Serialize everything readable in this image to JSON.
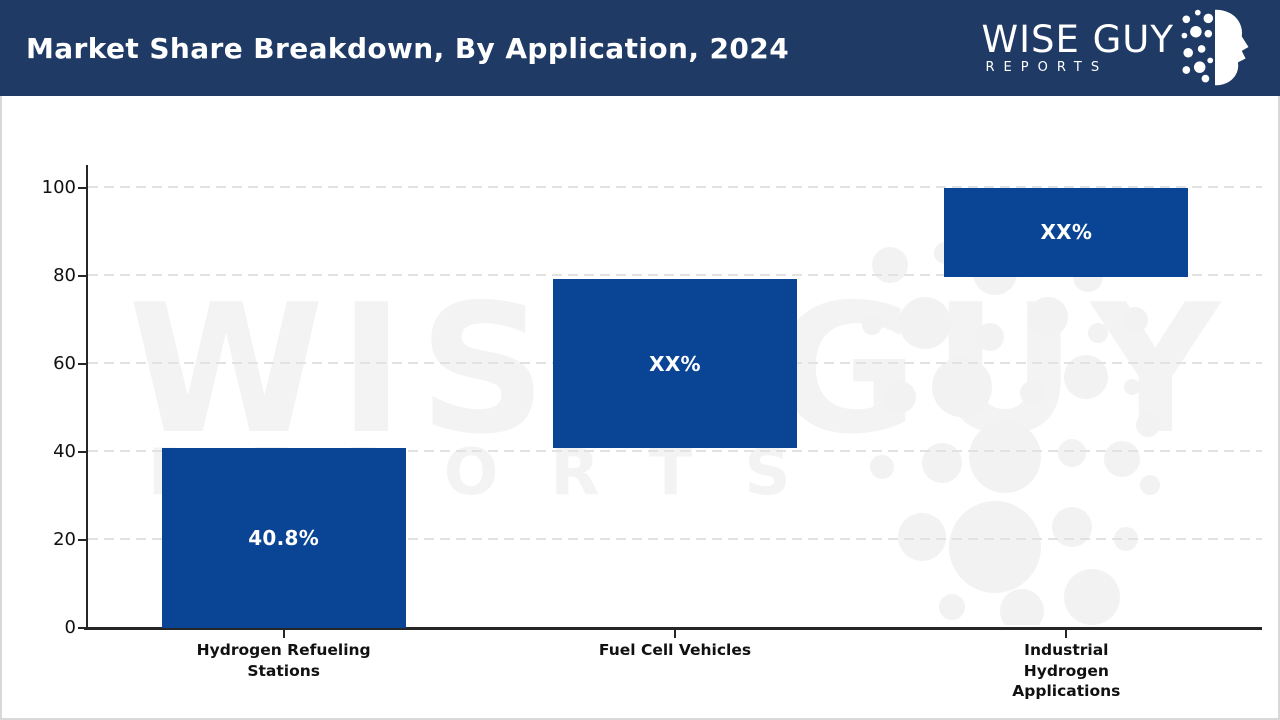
{
  "header": {
    "title": "Market Share Breakdown, By Application, 2024",
    "bg_color": "#1f3a64",
    "logo": {
      "line1": "WISE GUY",
      "line2": "REPORTS"
    }
  },
  "watermark": {
    "line1": "WISE GUY",
    "line2": "REPORTS"
  },
  "chart_data": {
    "type": "bar",
    "subtype": "waterfall",
    "title": "Market Share Breakdown, By Application, 2024",
    "xlabel": "",
    "ylabel": "",
    "categories": [
      "Hydrogen Refueling Stations",
      "Fuel Cell Vehicles",
      "Industrial Hydrogen Applications"
    ],
    "bars": [
      {
        "category": "Hydrogen Refueling Stations",
        "lines": [
          "Hydrogen Refueling",
          "Stations"
        ],
        "label": "40.8%",
        "start": 0,
        "end": 40.8
      },
      {
        "category": "Fuel Cell Vehicles",
        "lines": [
          "Fuel Cell Vehicles"
        ],
        "label": "XX%",
        "start": 40.8,
        "end": 79.4
      },
      {
        "category": "Industrial Hydrogen Applications",
        "lines": [
          "Industrial",
          "Hydrogen",
          "Applications"
        ],
        "label": "XX%",
        "start": 79.8,
        "end": 100
      }
    ],
    "yticks": [
      0,
      20,
      40,
      60,
      80,
      100
    ],
    "ylim": [
      0,
      104
    ],
    "grid": "horizontal dashed",
    "legend": "none",
    "bar_color": "#0a4494",
    "bar_label_color": "#ffffff",
    "axis_color": "#262626"
  }
}
